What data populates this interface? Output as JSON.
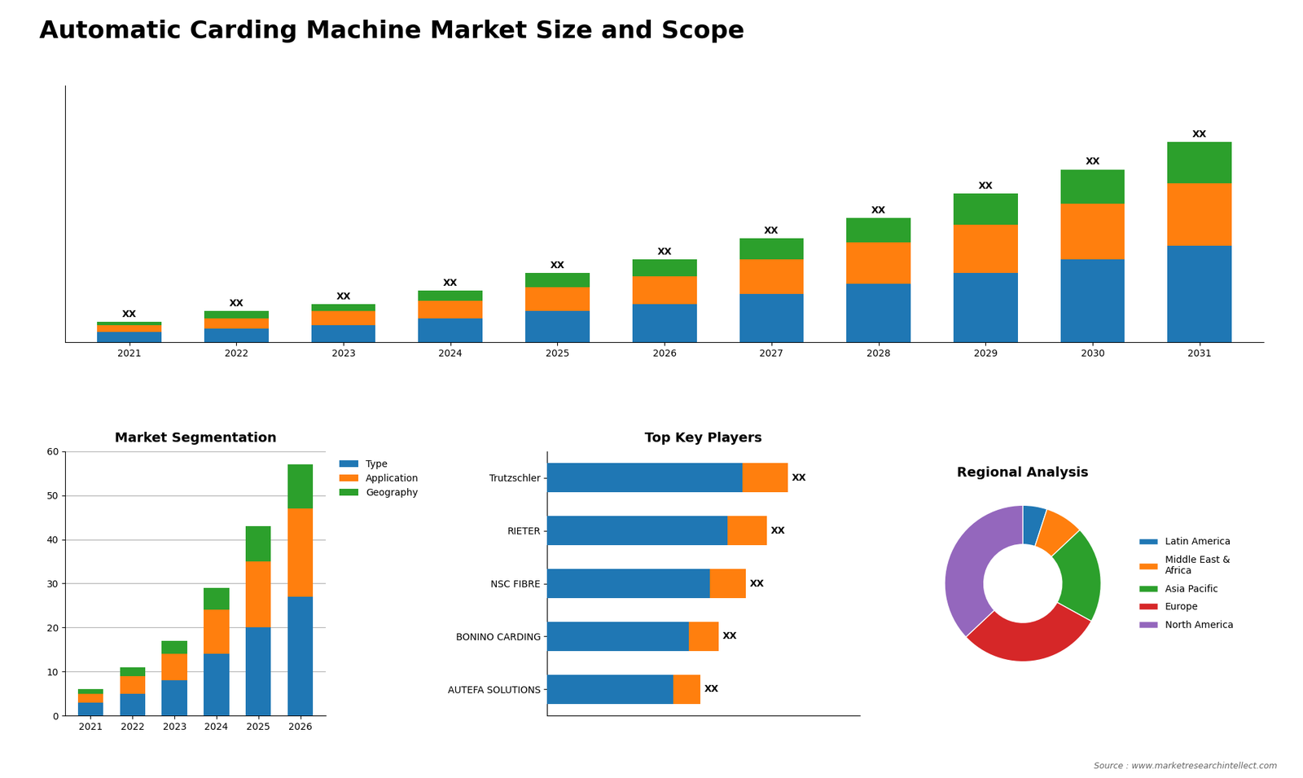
{
  "title": "Automatic Carding Machine Market Size and Scope",
  "source": "Source : www.marketresearchintellect.com",
  "chart_data": [
    {
      "type": "bar",
      "stacked": true,
      "categories": [
        "2021",
        "2022",
        "2023",
        "2024",
        "2025",
        "2026",
        "2027",
        "2028",
        "2029",
        "2030",
        "2031"
      ],
      "series": [
        {
          "values": [
            3,
            4,
            5,
            7,
            9,
            11,
            14,
            17,
            20,
            24,
            28
          ]
        },
        {
          "values": [
            2,
            3,
            4,
            5,
            7,
            8,
            10,
            12,
            14,
            16,
            18
          ]
        },
        {
          "values": [
            1,
            2,
            2,
            3,
            4,
            5,
            6,
            7,
            9,
            10,
            12
          ],
          "value_labels": [
            "XX",
            "XX",
            "XX",
            "XX",
            "XX",
            "XX",
            "XX",
            "XX",
            "XX",
            "XX",
            "XX"
          ]
        }
      ],
      "data_labels": true,
      "ylim": [
        0,
        74.24
      ],
      "tick_labels": "x"
    },
    {
      "type": "bar",
      "title": "Market Segmentation",
      "stacked": true,
      "categories": [
        "2021",
        "2022",
        "2023",
        "2024",
        "2025",
        "2026"
      ],
      "series": [
        {
          "name": "Type",
          "values": [
            3,
            5,
            8,
            14,
            20,
            27
          ]
        },
        {
          "name": "Application",
          "values": [
            2,
            4,
            6,
            10,
            15,
            20
          ]
        },
        {
          "name": "Geography",
          "values": [
            1,
            2,
            3,
            5,
            8,
            10
          ]
        }
      ],
      "ylim": [
        0,
        60
      ],
      "yticks": [
        0,
        10,
        20,
        30,
        40,
        50,
        60
      ],
      "grid": true,
      "legend": "upper left"
    },
    {
      "type": "bar",
      "title": "Top Key Players",
      "orientation": "horizontal",
      "stacked": true,
      "categories": [
        "Trutzschler",
        "RIETER",
        "NSC FIBRE",
        "BONINO CARDING",
        "AUTEFA SOLUTIONS"
      ],
      "series": [
        {
          "values": [
            65,
            60,
            54,
            47,
            42
          ]
        },
        {
          "values": [
            15,
            13,
            12,
            10,
            9
          ],
          "value_labels": [
            "XX",
            "XX",
            "XX",
            "XX",
            "XX"
          ]
        }
      ],
      "data_labels": true,
      "xlim": [
        0,
        104
      ],
      "tick_labels": "y"
    },
    {
      "type": "pie",
      "title": "Regional Analysis",
      "categories": [
        "Latin America",
        "Middle East &\nAfrica",
        "Asia Pacific",
        "Europe",
        "North America"
      ],
      "values": [
        5,
        8,
        20,
        30,
        37
      ],
      "legend": "center left"
    }
  ]
}
